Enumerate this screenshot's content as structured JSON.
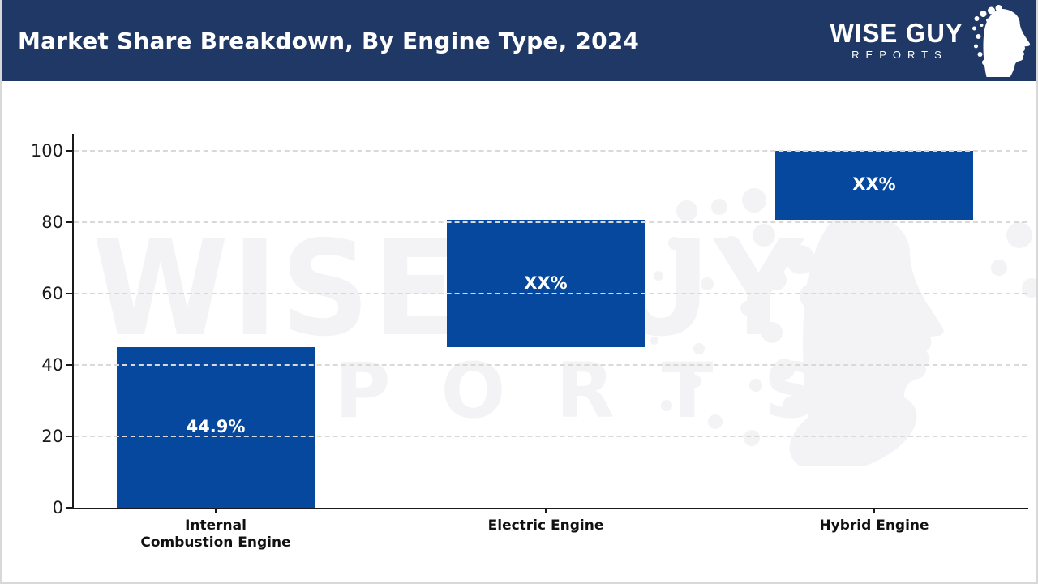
{
  "header": {
    "title": "Market Share Breakdown, By Engine Type, 2024",
    "background": "#203865",
    "logo": {
      "line1": "WISE GUY",
      "line2": "REPORTS",
      "face_icon": "dotted-head-profile"
    }
  },
  "watermark": {
    "big_text": "WISE GUY",
    "small_text": "REPORTS",
    "color": "#f3f3f5"
  },
  "chart_data": {
    "type": "bar",
    "variant": "waterfall-stacked-progression",
    "title": "Market Share Breakdown, By Engine Type, 2024",
    "categories": [
      "Internal Combustion Engine",
      "Electric Engine",
      "Hybrid Engine"
    ],
    "category_display_lines": [
      [
        "Internal",
        "Combustion Engine"
      ],
      [
        "Electric Engine"
      ],
      [
        "Hybrid Engine"
      ]
    ],
    "segments": [
      {
        "category": "Internal Combustion Engine",
        "start": 0,
        "end": 44.9,
        "label": "44.9%"
      },
      {
        "category": "Electric Engine",
        "start": 44.9,
        "end": 80.7,
        "label": "XX%"
      },
      {
        "category": "Hybrid Engine",
        "start": 80.7,
        "end": 100,
        "label": "XX%"
      }
    ],
    "yticks": [
      0,
      20,
      40,
      60,
      80,
      100
    ],
    "ylim": [
      0,
      105
    ],
    "xlabel": "",
    "ylabel": "",
    "legend": "none",
    "grid": "horizontal-dashed",
    "bar_color": "#05489E",
    "bar_label_color": "#FFFFFF",
    "axis_color": "#1A1A1A",
    "grid_color": "#D9D9D9"
  }
}
